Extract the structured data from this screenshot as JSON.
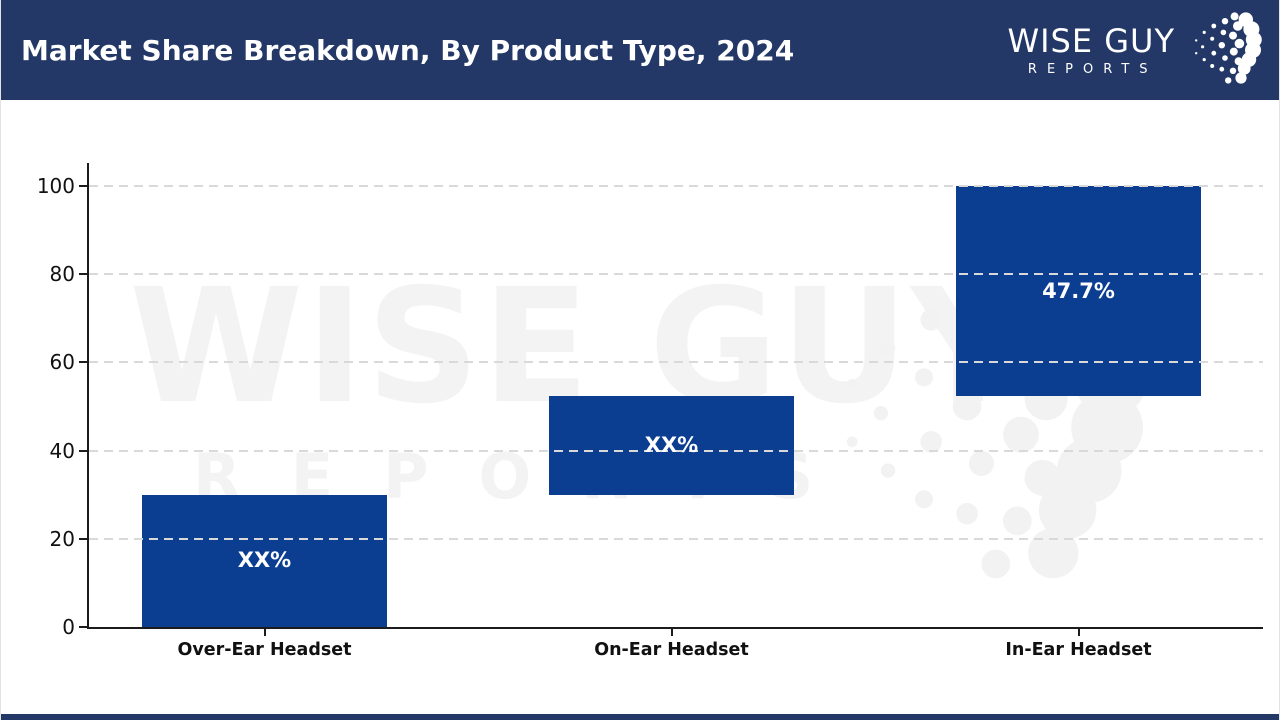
{
  "header": {
    "title": "Market Share Breakdown, By Product Type, 2024",
    "bg_color": "#233866",
    "text_color": "#ffffff",
    "logo": {
      "line1": "WISE GUY",
      "line2": "REPORTS"
    }
  },
  "watermark": {
    "line1": "WISE GUY",
    "line2": "REPORTS",
    "color": "#f3f3f3"
  },
  "footer": {
    "bar_color": "#233866"
  },
  "chart_data": {
    "type": "bar",
    "subtype": "floating-cumulative-segments",
    "title": "Market Share Breakdown, By Product Type, 2024",
    "categories": [
      "Over-Ear Headset",
      "On-Ear Headset",
      "In-Ear Headset"
    ],
    "segments": [
      {
        "category": "Over-Ear Headset",
        "start": 0,
        "end": 30,
        "value_label": "XX%"
      },
      {
        "category": "On-Ear Headset",
        "start": 30,
        "end": 52.3,
        "value_label": "XX%"
      },
      {
        "category": "In-Ear Headset",
        "start": 52.3,
        "end": 100,
        "value_label": "47.7%"
      }
    ],
    "ylim": [
      0,
      100
    ],
    "yticks": [
      0,
      20,
      40,
      60,
      80,
      100
    ],
    "grid": "horizontal-dashed",
    "grid_over_bars": true,
    "bar_color": "#0b3d91",
    "value_label_color": "#ffffff",
    "axis_color": "#1c1c1c",
    "legend": "none"
  }
}
